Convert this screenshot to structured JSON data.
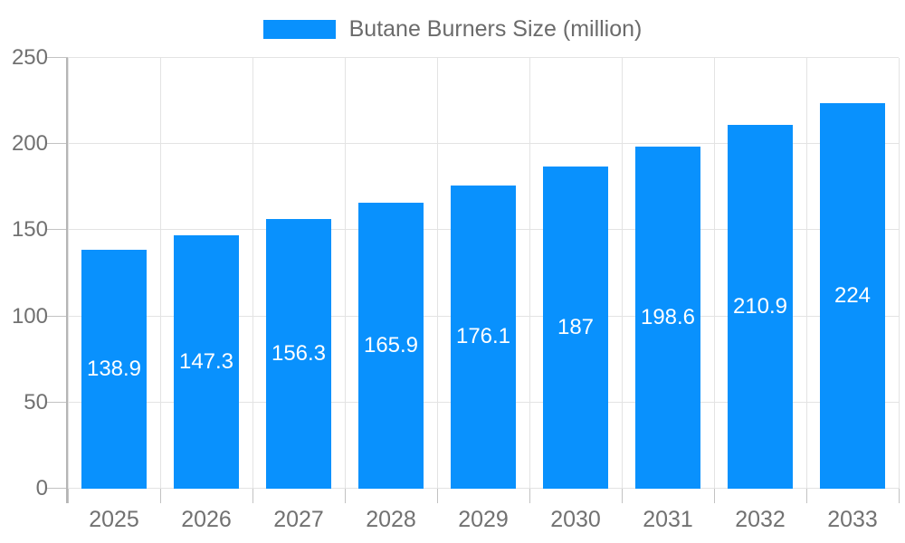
{
  "legend": {
    "label": "Butane Burners Size (million)"
  },
  "colors": {
    "bar": "#0991FD",
    "grid": "#e3e3e3",
    "tick": "#c2c2c2",
    "axis": "#b5b5b5",
    "tick_label": "#717171",
    "legend_text": "#6b6b6b",
    "bar_label": "#ffffff",
    "background": "#ffffff"
  },
  "chart_data": {
    "type": "bar",
    "title": "Butane Burners Size (million)",
    "categories": [
      "2025",
      "2026",
      "2027",
      "2028",
      "2029",
      "2030",
      "2031",
      "2032",
      "2033"
    ],
    "values": [
      138.9,
      147.3,
      156.3,
      165.9,
      176.1,
      187,
      198.6,
      210.9,
      224
    ],
    "value_labels": [
      "138.9",
      "147.3",
      "156.3",
      "165.9",
      "176.1",
      "187",
      "198.6",
      "210.9",
      "224"
    ],
    "xlabel": "",
    "ylabel": "",
    "ylim": [
      0,
      250
    ],
    "ytick_step": 50,
    "yticks": [
      "0",
      "50",
      "100",
      "150",
      "200",
      "250"
    ],
    "grid": "both",
    "legend_position": "top",
    "value_label_position": "inside-center"
  }
}
